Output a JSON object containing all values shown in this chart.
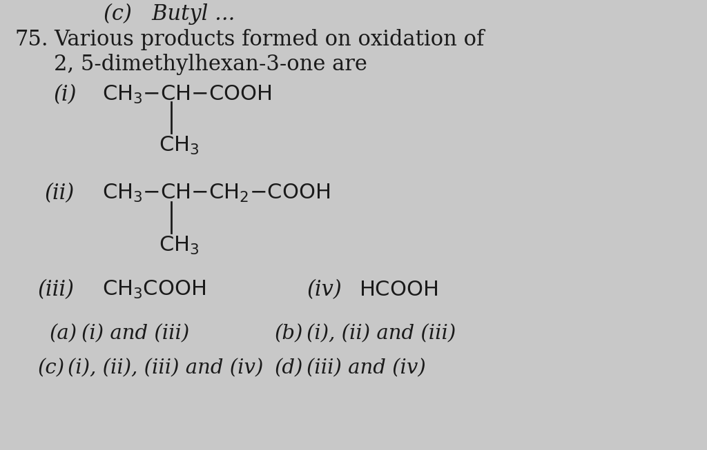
{
  "bg_color": "#c8c8c8",
  "text_color": "#1a1a1a",
  "font_size_main": 22,
  "font_size_formula": 22,
  "font_size_answer": 21,
  "top_partial": "(c)  Butyl ...",
  "q_num": "75.",
  "q_line1": "Various products formed on oxidation of",
  "q_line2": "2, 5-dimethylhexan-3-one are",
  "i_label": "(i)",
  "i_formula": "CH₃–CH–COOH",
  "i_branch": "CH₃",
  "ii_label": "(ii)",
  "ii_formula": "CH₃–CH–CH₂–COOH",
  "ii_branch": "CH₃",
  "iii_label": "(iii)",
  "iii_formula": "CH₃COOH",
  "iv_label": "(iv)",
  "iv_formula": "HCOOH",
  "a_label": "(a)",
  "a_text": "(i) and (iii)",
  "b_label": "(b)",
  "b_text": "(i), (ii) and (iii)",
  "c_label": "(c)",
  "c_text": "(i), (ii), (iii) and (iv)",
  "d_label": "(d)",
  "d_text": "(iii) and (iv)"
}
